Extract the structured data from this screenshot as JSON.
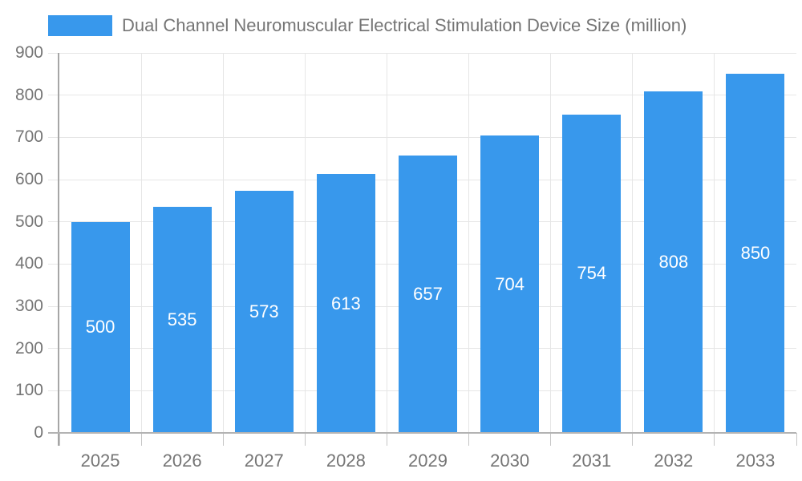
{
  "page": {
    "background_color": "#ffffff"
  },
  "chart_data": {
    "type": "bar",
    "title": "Dual Channel Neuromuscular Electrical Stimulation Device Size (million)",
    "categories": [
      "2025",
      "2026",
      "2027",
      "2028",
      "2029",
      "2030",
      "2031",
      "2032",
      "2033"
    ],
    "values": [
      500,
      535,
      573,
      613,
      657,
      704,
      754,
      808,
      850
    ],
    "value_labels": [
      "500",
      "535",
      "573",
      "613",
      "657",
      "704",
      "754",
      "808",
      "850"
    ],
    "xlabel": "",
    "ylabel": "",
    "ylim": [
      0,
      900
    ],
    "y_ticks": [
      0,
      100,
      200,
      300,
      400,
      500,
      600,
      700,
      800,
      900
    ],
    "grid": true,
    "legend_position": "top-left",
    "colors": {
      "bar": "#3898ec",
      "value_label": "#ffffff",
      "axis_text": "#757575",
      "gridline": "#e6e6e6",
      "axis_line": "#a6a6a6",
      "zero_line": "#b3b3b3"
    }
  }
}
